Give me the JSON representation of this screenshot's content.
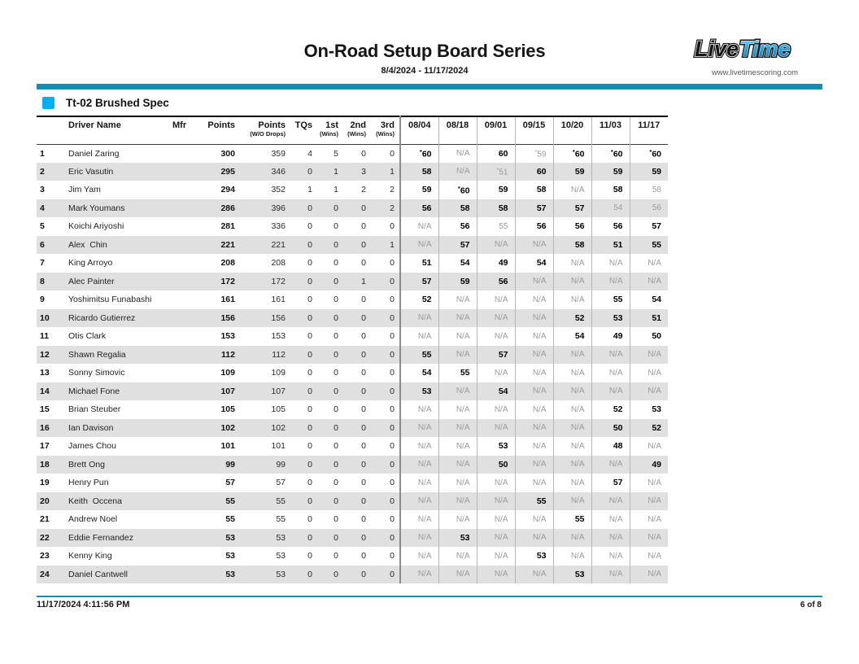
{
  "header": {
    "title": "On-Road Setup Board Series",
    "date_range": "8/4/2024 - 11/17/2024",
    "logo": {
      "live": "Live",
      "time": "Time",
      "website": "www.livetimescoring.com"
    }
  },
  "section": {
    "title": "Tt-02 Brushed Spec"
  },
  "colors": {
    "divider_blue": "#2187ad",
    "class_swatch_cyan": "#00b0f0",
    "dropped_score_gray": "#9b9b9b",
    "row_stripe_gray": "#e0e0e0"
  },
  "table": {
    "headers": {
      "rank": "",
      "driver": "Driver Name",
      "mfr": "Mfr",
      "points": "Points",
      "points_wo": "Points",
      "points_wo_sub": "(W/O Drops)",
      "tqs": "TQs",
      "first": "1st",
      "second": "2nd",
      "third": "3rd",
      "wins_sub": "(Wins)"
    },
    "date_columns": [
      "08/04",
      "08/18",
      "09/01",
      "09/15",
      "10/20",
      "11/03",
      "11/17"
    ],
    "legend": {
      "tq_marker": "*",
      "not_attended": "N/A"
    },
    "rows": [
      {
        "rank": "1",
        "driver": "Daniel Zaring",
        "mfr": "",
        "points": "300",
        "points_wo_drops": "359",
        "tqs": "4",
        "wins_1st": "5",
        "wins_2nd": "0",
        "wins_3rd": "0",
        "scores": [
          {
            "value": "60",
            "tq": true
          },
          {
            "value": "N/A",
            "muted": true
          },
          {
            "value": "60"
          },
          {
            "value": "59",
            "tq": true,
            "muted": true
          },
          {
            "value": "60",
            "tq": true
          },
          {
            "value": "60",
            "tq": true
          },
          {
            "value": "60",
            "tq": true
          }
        ]
      },
      {
        "rank": "2",
        "driver": "Eric Vasutin",
        "mfr": "",
        "points": "295",
        "points_wo_drops": "346",
        "tqs": "0",
        "wins_1st": "1",
        "wins_2nd": "3",
        "wins_3rd": "1",
        "scores": [
          {
            "value": "58"
          },
          {
            "value": "N/A",
            "muted": true
          },
          {
            "value": "51",
            "tq": true,
            "muted": true
          },
          {
            "value": "60"
          },
          {
            "value": "59"
          },
          {
            "value": "59"
          },
          {
            "value": "59"
          }
        ]
      },
      {
        "rank": "3",
        "driver": "Jim Yam",
        "mfr": "",
        "points": "294",
        "points_wo_drops": "352",
        "tqs": "1",
        "wins_1st": "1",
        "wins_2nd": "2",
        "wins_3rd": "2",
        "scores": [
          {
            "value": "59"
          },
          {
            "value": "60",
            "tq": true
          },
          {
            "value": "59"
          },
          {
            "value": "58"
          },
          {
            "value": "N/A",
            "muted": true
          },
          {
            "value": "58"
          },
          {
            "value": "58",
            "muted": true
          }
        ]
      },
      {
        "rank": "4",
        "driver": "Mark Youmans",
        "mfr": "",
        "points": "286",
        "points_wo_drops": "396",
        "tqs": "0",
        "wins_1st": "0",
        "wins_2nd": "0",
        "wins_3rd": "2",
        "scores": [
          {
            "value": "56"
          },
          {
            "value": "58"
          },
          {
            "value": "58"
          },
          {
            "value": "57"
          },
          {
            "value": "57"
          },
          {
            "value": "54",
            "muted": true
          },
          {
            "value": "56",
            "muted": true
          }
        ]
      },
      {
        "rank": "5",
        "driver": "Koichi Ariyoshi",
        "mfr": "",
        "points": "281",
        "points_wo_drops": "336",
        "tqs": "0",
        "wins_1st": "0",
        "wins_2nd": "0",
        "wins_3rd": "0",
        "scores": [
          {
            "value": "N/A",
            "muted": true
          },
          {
            "value": "56"
          },
          {
            "value": "55",
            "muted": true
          },
          {
            "value": "56"
          },
          {
            "value": "56"
          },
          {
            "value": "56"
          },
          {
            "value": "57"
          }
        ]
      },
      {
        "rank": "6",
        "driver": "Alex  Chin",
        "mfr": "",
        "points": "221",
        "points_wo_drops": "221",
        "tqs": "0",
        "wins_1st": "0",
        "wins_2nd": "0",
        "wins_3rd": "1",
        "scores": [
          {
            "value": "N/A",
            "muted": true
          },
          {
            "value": "57"
          },
          {
            "value": "N/A",
            "muted": true
          },
          {
            "value": "N/A",
            "muted": true
          },
          {
            "value": "58"
          },
          {
            "value": "51"
          },
          {
            "value": "55"
          }
        ]
      },
      {
        "rank": "7",
        "driver": "King Arroyo",
        "mfr": "",
        "points": "208",
        "points_wo_drops": "208",
        "tqs": "0",
        "wins_1st": "0",
        "wins_2nd": "0",
        "wins_3rd": "0",
        "scores": [
          {
            "value": "51"
          },
          {
            "value": "54"
          },
          {
            "value": "49"
          },
          {
            "value": "54"
          },
          {
            "value": "N/A",
            "muted": true
          },
          {
            "value": "N/A",
            "muted": true
          },
          {
            "value": "N/A",
            "muted": true
          }
        ]
      },
      {
        "rank": "8",
        "driver": "Alec Painter",
        "mfr": "",
        "points": "172",
        "points_wo_drops": "172",
        "tqs": "0",
        "wins_1st": "0",
        "wins_2nd": "1",
        "wins_3rd": "0",
        "scores": [
          {
            "value": "57"
          },
          {
            "value": "59"
          },
          {
            "value": "56"
          },
          {
            "value": "N/A",
            "muted": true
          },
          {
            "value": "N/A",
            "muted": true
          },
          {
            "value": "N/A",
            "muted": true
          },
          {
            "value": "N/A",
            "muted": true
          }
        ]
      },
      {
        "rank": "9",
        "driver": "Yoshimitsu Funabashi",
        "mfr": "",
        "points": "161",
        "points_wo_drops": "161",
        "tqs": "0",
        "wins_1st": "0",
        "wins_2nd": "0",
        "wins_3rd": "0",
        "scores": [
          {
            "value": "52"
          },
          {
            "value": "N/A",
            "muted": true
          },
          {
            "value": "N/A",
            "muted": true
          },
          {
            "value": "N/A",
            "muted": true
          },
          {
            "value": "N/A",
            "muted": true
          },
          {
            "value": "55"
          },
          {
            "value": "54"
          }
        ]
      },
      {
        "rank": "10",
        "driver": "Ricardo Gutierrez",
        "mfr": "",
        "points": "156",
        "points_wo_drops": "156",
        "tqs": "0",
        "wins_1st": "0",
        "wins_2nd": "0",
        "wins_3rd": "0",
        "scores": [
          {
            "value": "N/A",
            "muted": true
          },
          {
            "value": "N/A",
            "muted": true
          },
          {
            "value": "N/A",
            "muted": true
          },
          {
            "value": "N/A",
            "muted": true
          },
          {
            "value": "52"
          },
          {
            "value": "53"
          },
          {
            "value": "51"
          }
        ]
      },
      {
        "rank": "11",
        "driver": "Otis Clark",
        "mfr": "",
        "points": "153",
        "points_wo_drops": "153",
        "tqs": "0",
        "wins_1st": "0",
        "wins_2nd": "0",
        "wins_3rd": "0",
        "scores": [
          {
            "value": "N/A",
            "muted": true
          },
          {
            "value": "N/A",
            "muted": true
          },
          {
            "value": "N/A",
            "muted": true
          },
          {
            "value": "N/A",
            "muted": true
          },
          {
            "value": "54"
          },
          {
            "value": "49"
          },
          {
            "value": "50"
          }
        ]
      },
      {
        "rank": "12",
        "driver": "Shawn Regalia",
        "mfr": "",
        "points": "112",
        "points_wo_drops": "112",
        "tqs": "0",
        "wins_1st": "0",
        "wins_2nd": "0",
        "wins_3rd": "0",
        "scores": [
          {
            "value": "55"
          },
          {
            "value": "N/A",
            "muted": true
          },
          {
            "value": "57"
          },
          {
            "value": "N/A",
            "muted": true
          },
          {
            "value": "N/A",
            "muted": true
          },
          {
            "value": "N/A",
            "muted": true
          },
          {
            "value": "N/A",
            "muted": true
          }
        ]
      },
      {
        "rank": "13",
        "driver": "Sonny Simovic",
        "mfr": "",
        "points": "109",
        "points_wo_drops": "109",
        "tqs": "0",
        "wins_1st": "0",
        "wins_2nd": "0",
        "wins_3rd": "0",
        "scores": [
          {
            "value": "54"
          },
          {
            "value": "55"
          },
          {
            "value": "N/A",
            "muted": true
          },
          {
            "value": "N/A",
            "muted": true
          },
          {
            "value": "N/A",
            "muted": true
          },
          {
            "value": "N/A",
            "muted": true
          },
          {
            "value": "N/A",
            "muted": true
          }
        ]
      },
      {
        "rank": "14",
        "driver": "Michael Fone",
        "mfr": "",
        "points": "107",
        "points_wo_drops": "107",
        "tqs": "0",
        "wins_1st": "0",
        "wins_2nd": "0",
        "wins_3rd": "0",
        "scores": [
          {
            "value": "53"
          },
          {
            "value": "N/A",
            "muted": true
          },
          {
            "value": "54"
          },
          {
            "value": "N/A",
            "muted": true
          },
          {
            "value": "N/A",
            "muted": true
          },
          {
            "value": "N/A",
            "muted": true
          },
          {
            "value": "N/A",
            "muted": true
          }
        ]
      },
      {
        "rank": "15",
        "driver": "Brian Steuber",
        "mfr": "",
        "points": "105",
        "points_wo_drops": "105",
        "tqs": "0",
        "wins_1st": "0",
        "wins_2nd": "0",
        "wins_3rd": "0",
        "scores": [
          {
            "value": "N/A",
            "muted": true
          },
          {
            "value": "N/A",
            "muted": true
          },
          {
            "value": "N/A",
            "muted": true
          },
          {
            "value": "N/A",
            "muted": true
          },
          {
            "value": "N/A",
            "muted": true
          },
          {
            "value": "52"
          },
          {
            "value": "53"
          }
        ]
      },
      {
        "rank": "16",
        "driver": "Ian Davison",
        "mfr": "",
        "points": "102",
        "points_wo_drops": "102",
        "tqs": "0",
        "wins_1st": "0",
        "wins_2nd": "0",
        "wins_3rd": "0",
        "scores": [
          {
            "value": "N/A",
            "muted": true
          },
          {
            "value": "N/A",
            "muted": true
          },
          {
            "value": "N/A",
            "muted": true
          },
          {
            "value": "N/A",
            "muted": true
          },
          {
            "value": "N/A",
            "muted": true
          },
          {
            "value": "50"
          },
          {
            "value": "52"
          }
        ]
      },
      {
        "rank": "17",
        "driver": "James Chou",
        "mfr": "",
        "points": "101",
        "points_wo_drops": "101",
        "tqs": "0",
        "wins_1st": "0",
        "wins_2nd": "0",
        "wins_3rd": "0",
        "scores": [
          {
            "value": "N/A",
            "muted": true
          },
          {
            "value": "N/A",
            "muted": true
          },
          {
            "value": "53"
          },
          {
            "value": "N/A",
            "muted": true
          },
          {
            "value": "N/A",
            "muted": true
          },
          {
            "value": "48"
          },
          {
            "value": "N/A",
            "muted": true
          }
        ]
      },
      {
        "rank": "18",
        "driver": "Brett Ong",
        "mfr": "",
        "points": "99",
        "points_wo_drops": "99",
        "tqs": "0",
        "wins_1st": "0",
        "wins_2nd": "0",
        "wins_3rd": "0",
        "scores": [
          {
            "value": "N/A",
            "muted": true
          },
          {
            "value": "N/A",
            "muted": true
          },
          {
            "value": "50"
          },
          {
            "value": "N/A",
            "muted": true
          },
          {
            "value": "N/A",
            "muted": true
          },
          {
            "value": "N/A",
            "muted": true
          },
          {
            "value": "49"
          }
        ]
      },
      {
        "rank": "19",
        "driver": "Henry Pun",
        "mfr": "",
        "points": "57",
        "points_wo_drops": "57",
        "tqs": "0",
        "wins_1st": "0",
        "wins_2nd": "0",
        "wins_3rd": "0",
        "scores": [
          {
            "value": "N/A",
            "muted": true
          },
          {
            "value": "N/A",
            "muted": true
          },
          {
            "value": "N/A",
            "muted": true
          },
          {
            "value": "N/A",
            "muted": true
          },
          {
            "value": "N/A",
            "muted": true
          },
          {
            "value": "57"
          },
          {
            "value": "N/A",
            "muted": true
          }
        ]
      },
      {
        "rank": "20",
        "driver": "Keith  Occena",
        "mfr": "",
        "points": "55",
        "points_wo_drops": "55",
        "tqs": "0",
        "wins_1st": "0",
        "wins_2nd": "0",
        "wins_3rd": "0",
        "scores": [
          {
            "value": "N/A",
            "muted": true
          },
          {
            "value": "N/A",
            "muted": true
          },
          {
            "value": "N/A",
            "muted": true
          },
          {
            "value": "55"
          },
          {
            "value": "N/A",
            "muted": true
          },
          {
            "value": "N/A",
            "muted": true
          },
          {
            "value": "N/A",
            "muted": true
          }
        ]
      },
      {
        "rank": "21",
        "driver": "Andrew Noel",
        "mfr": "",
        "points": "55",
        "points_wo_drops": "55",
        "tqs": "0",
        "wins_1st": "0",
        "wins_2nd": "0",
        "wins_3rd": "0",
        "scores": [
          {
            "value": "N/A",
            "muted": true
          },
          {
            "value": "N/A",
            "muted": true
          },
          {
            "value": "N/A",
            "muted": true
          },
          {
            "value": "N/A",
            "muted": true
          },
          {
            "value": "55"
          },
          {
            "value": "N/A",
            "muted": true
          },
          {
            "value": "N/A",
            "muted": true
          }
        ]
      },
      {
        "rank": "22",
        "driver": "Eddie Fernandez",
        "mfr": "",
        "points": "53",
        "points_wo_drops": "53",
        "tqs": "0",
        "wins_1st": "0",
        "wins_2nd": "0",
        "wins_3rd": "0",
        "scores": [
          {
            "value": "N/A",
            "muted": true
          },
          {
            "value": "53"
          },
          {
            "value": "N/A",
            "muted": true
          },
          {
            "value": "N/A",
            "muted": true
          },
          {
            "value": "N/A",
            "muted": true
          },
          {
            "value": "N/A",
            "muted": true
          },
          {
            "value": "N/A",
            "muted": true
          }
        ]
      },
      {
        "rank": "23",
        "driver": "Kenny King",
        "mfr": "",
        "points": "53",
        "points_wo_drops": "53",
        "tqs": "0",
        "wins_1st": "0",
        "wins_2nd": "0",
        "wins_3rd": "0",
        "scores": [
          {
            "value": "N/A",
            "muted": true
          },
          {
            "value": "N/A",
            "muted": true
          },
          {
            "value": "N/A",
            "muted": true
          },
          {
            "value": "53"
          },
          {
            "value": "N/A",
            "muted": true
          },
          {
            "value": "N/A",
            "muted": true
          },
          {
            "value": "N/A",
            "muted": true
          }
        ]
      },
      {
        "rank": "24",
        "driver": "Daniel Cantwell",
        "mfr": "",
        "points": "53",
        "points_wo_drops": "53",
        "tqs": "0",
        "wins_1st": "0",
        "wins_2nd": "0",
        "wins_3rd": "0",
        "scores": [
          {
            "value": "N/A",
            "muted": true
          },
          {
            "value": "N/A",
            "muted": true
          },
          {
            "value": "N/A",
            "muted": true
          },
          {
            "value": "N/A",
            "muted": true
          },
          {
            "value": "53"
          },
          {
            "value": "N/A",
            "muted": true
          },
          {
            "value": "N/A",
            "muted": true
          }
        ]
      }
    ]
  },
  "footer": {
    "timestamp": "11/17/2024 4:11:56 PM",
    "page": "6 of 8"
  }
}
